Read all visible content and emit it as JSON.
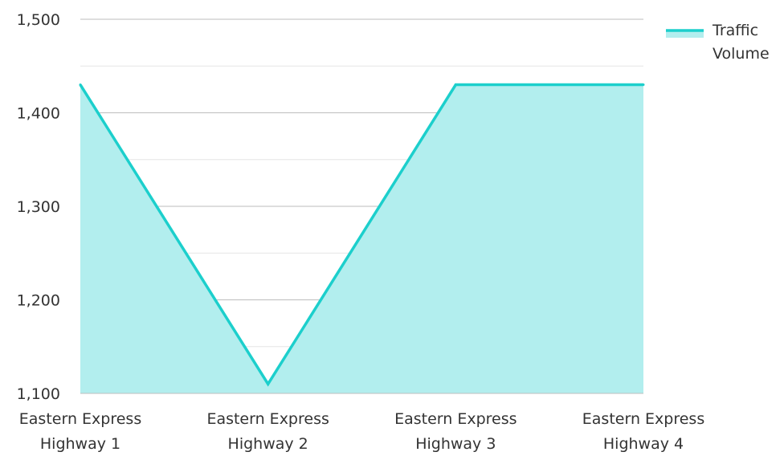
{
  "chart_data": {
    "type": "area",
    "title": "",
    "xlabel": "",
    "ylabel": "",
    "categories": [
      [
        "Eastern Express",
        "Highway 1"
      ],
      [
        "Eastern Express",
        "Highway 2"
      ],
      [
        "Eastern Express",
        "Highway 3"
      ],
      [
        "Eastern Express",
        "Highway 4"
      ]
    ],
    "series": [
      {
        "name": "Traffic Volume",
        "legend_lines": [
          "Traffic",
          "Volume"
        ],
        "values": [
          1430,
          1110,
          1430,
          1430
        ],
        "color": "#1ccfcc",
        "fill": "#b2eeee"
      }
    ],
    "ylim": [
      1100,
      1500
    ],
    "yticks": [
      1100,
      1200,
      1300,
      1400,
      1500
    ],
    "ytick_labels": [
      "1,100",
      "1,200",
      "1,300",
      "1,400",
      "1,500"
    ],
    "grid": true,
    "legend": "top-right"
  }
}
